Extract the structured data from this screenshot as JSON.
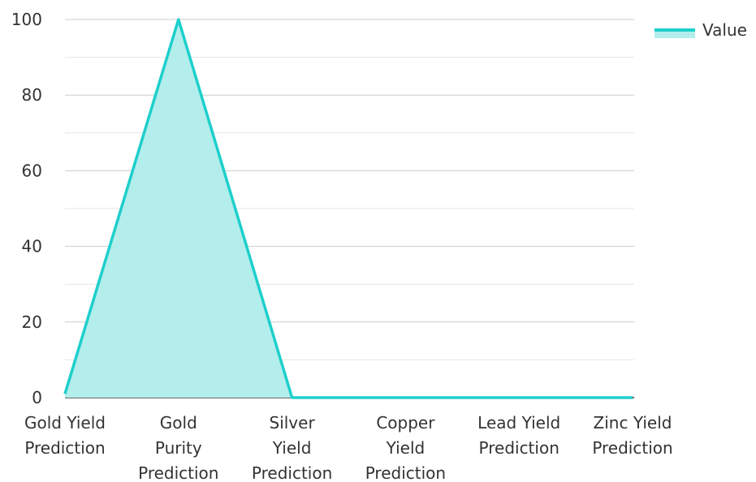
{
  "chart_data": {
    "type": "area",
    "categories": [
      [
        "Gold Yield",
        "Prediction"
      ],
      [
        "Gold",
        "Purity",
        "Prediction"
      ],
      [
        "Silver",
        "Yield",
        "Prediction"
      ],
      [
        "Copper",
        "Yield",
        "Prediction"
      ],
      [
        "Lead Yield",
        "Prediction"
      ],
      [
        "Zinc Yield",
        "Prediction"
      ]
    ],
    "series": [
      {
        "name": "Value",
        "values": [
          1,
          100,
          0,
          0,
          0,
          0
        ]
      }
    ],
    "ylim": [
      0,
      100
    ],
    "yticks": [
      0,
      20,
      40,
      60,
      80,
      100
    ],
    "grid": true,
    "legend": "top-right",
    "colors": {
      "line": "#1ecfcb",
      "fill": "#b3eeec",
      "grid_major": "#cccccc",
      "grid_minor": "#e6e6e6",
      "axis": "#333333",
      "text": "#333333"
    }
  }
}
